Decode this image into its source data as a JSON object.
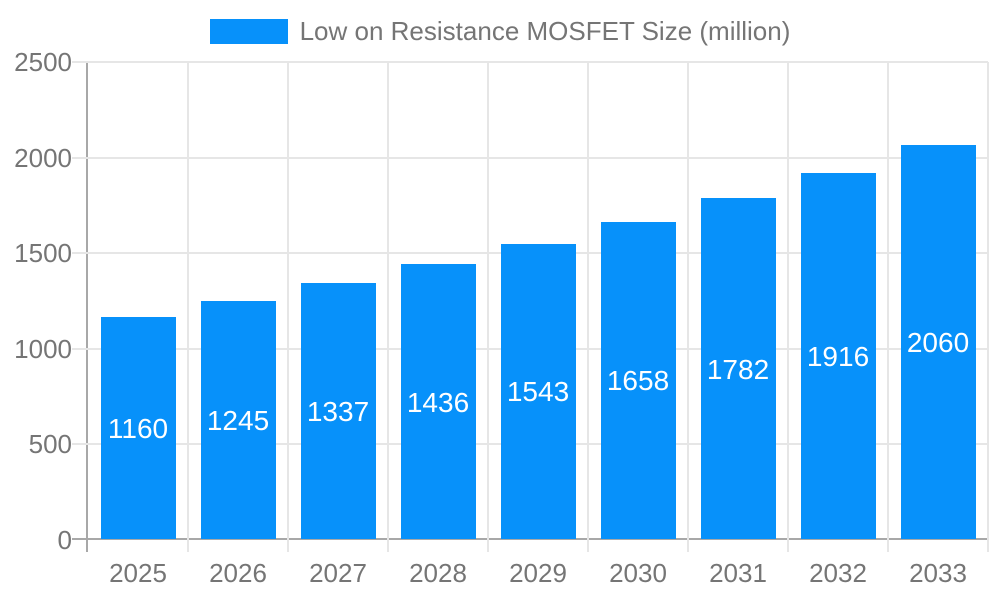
{
  "legend": {
    "label": "Low on Resistance MOSFET Size (million)",
    "swatch_color": "#0791fa"
  },
  "chart_data": {
    "type": "bar",
    "title": "Low on Resistance MOSFET Size (million)",
    "categories": [
      "2025",
      "2026",
      "2027",
      "2028",
      "2029",
      "2030",
      "2031",
      "2032",
      "2033"
    ],
    "values": [
      1160,
      1245,
      1337,
      1436,
      1543,
      1658,
      1782,
      1916,
      2060
    ],
    "xlabel": "",
    "ylabel": "",
    "ylim": [
      0,
      2500
    ],
    "yticks": [
      0,
      500,
      1000,
      1500,
      2000,
      2500
    ],
    "grid": true,
    "legend_position": "top",
    "bar_color": "#0791fa",
    "value_label_color": "#ffffff",
    "tick_label_color": "#757575",
    "axis_color": "#a8a8a8",
    "gridline_color": "#e6e6e6",
    "background_color": "#ffffff"
  }
}
